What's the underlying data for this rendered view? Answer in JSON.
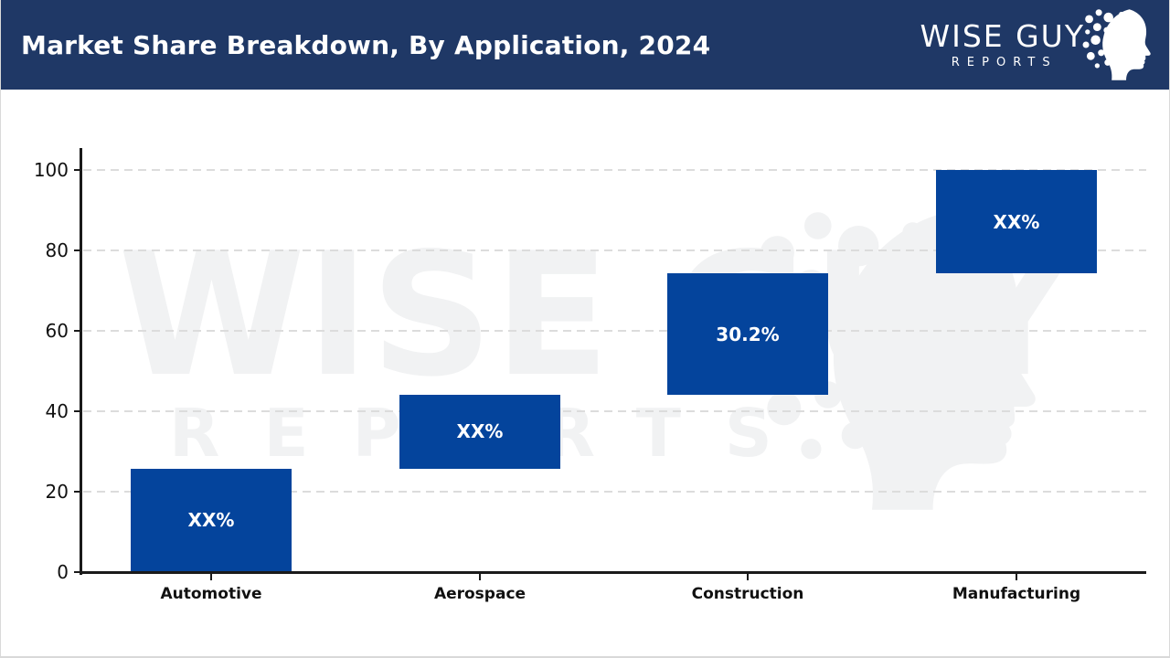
{
  "header": {
    "title": "Market Share Breakdown, By Application, 2024",
    "bg_color": "#1f3866",
    "logo": {
      "line1": "WISE GUY",
      "line2": "REPORTS"
    }
  },
  "watermark": {
    "line1": "WISE GUY",
    "line2": "REPORTS"
  },
  "chart_data": {
    "type": "bar",
    "subtype": "waterfall_floating_bars",
    "title": "Market Share Breakdown, By Application, 2024",
    "categories": [
      "Automotive",
      "Aerospace",
      "Construction",
      "Manufacturing"
    ],
    "bars": [
      {
        "category": "Automotive",
        "start": 0,
        "end": 25.7,
        "label": "XX%"
      },
      {
        "category": "Aerospace",
        "start": 25.7,
        "end": 44.1,
        "label": "XX%"
      },
      {
        "category": "Construction",
        "start": 44.1,
        "end": 74.3,
        "label": "30.2%"
      },
      {
        "category": "Manufacturing",
        "start": 74.3,
        "end": 100,
        "label": "XX%"
      }
    ],
    "xlabel": "",
    "ylabel": "",
    "ylim": [
      0,
      100
    ],
    "yticks": [
      0,
      20,
      40,
      60,
      80,
      100
    ],
    "grid": {
      "horizontal": true,
      "style": "dashed",
      "color": "#dcdcdc"
    },
    "legend": null,
    "bar_color": "#04449c",
    "bar_label_color": "#ffffff",
    "axis_color": "#1a1a1a"
  }
}
